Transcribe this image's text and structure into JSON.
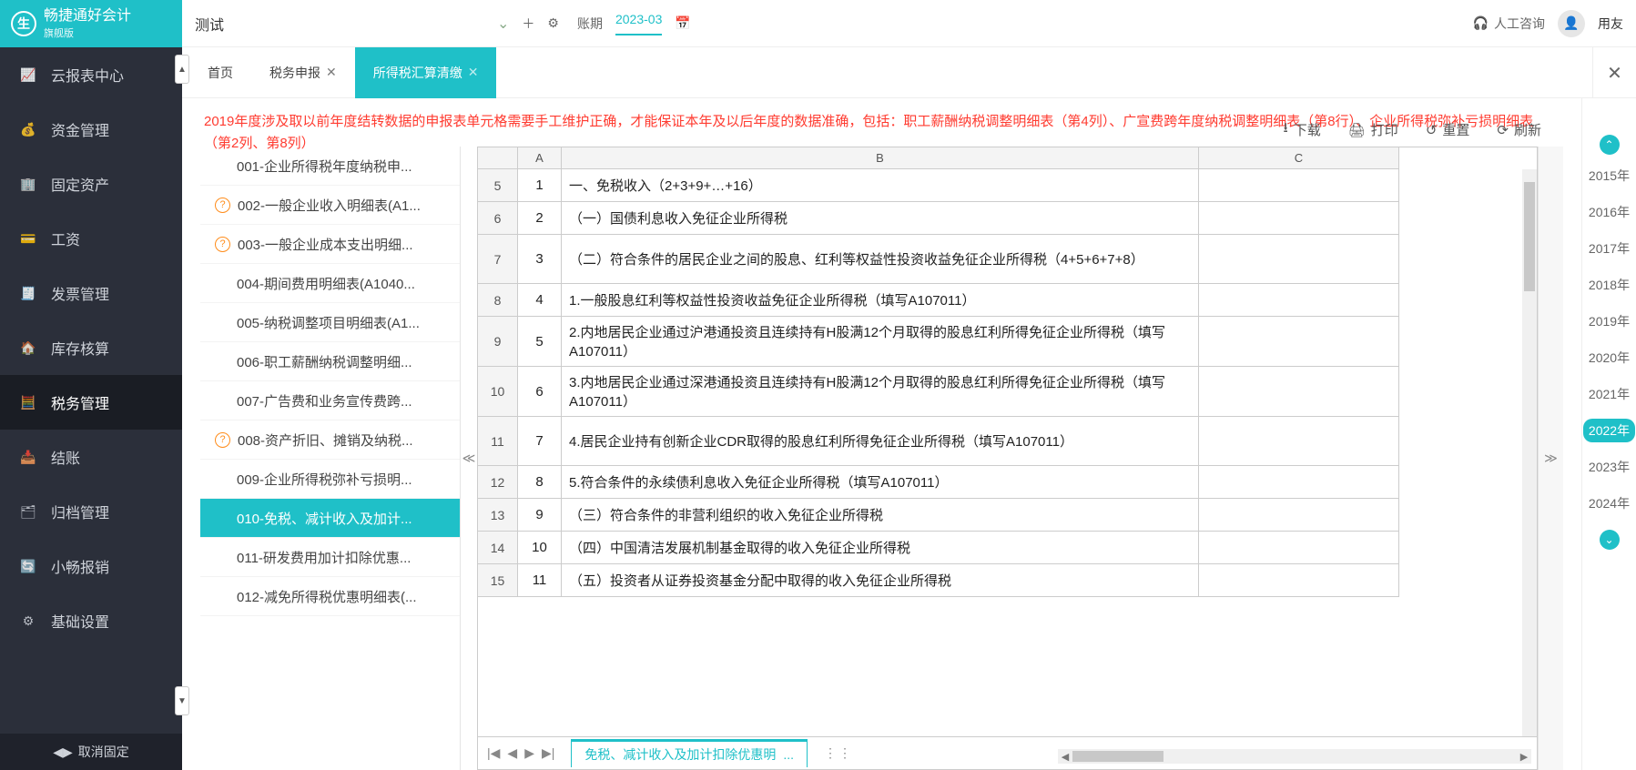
{
  "brand": {
    "name": "畅捷通好会计",
    "edition": "旗舰版",
    "logo_char": "生"
  },
  "topbar": {
    "company": "测试",
    "period_label": "账期",
    "period_value": "2023-03",
    "support": "人工咨询",
    "user": "用友"
  },
  "sidebar": {
    "items": [
      {
        "label": "云报表中心",
        "icon": "report-icon"
      },
      {
        "label": "资金管理",
        "icon": "cash-icon"
      },
      {
        "label": "固定资产",
        "icon": "asset-icon"
      },
      {
        "label": "工资",
        "icon": "salary-icon"
      },
      {
        "label": "发票管理",
        "icon": "invoice-icon"
      },
      {
        "label": "库存核算",
        "icon": "inventory-icon"
      },
      {
        "label": "税务管理",
        "icon": "tax-icon",
        "active": true
      },
      {
        "label": "结账",
        "icon": "close-icon"
      },
      {
        "label": "归档管理",
        "icon": "archive-icon"
      },
      {
        "label": "小畅报销",
        "icon": "reimburse-icon"
      },
      {
        "label": "基础设置",
        "icon": "settings-icon"
      }
    ],
    "collapse_label": "取消固定"
  },
  "tabs": {
    "items": [
      {
        "label": "首页",
        "closable": false
      },
      {
        "label": "税务申报",
        "closable": true
      },
      {
        "label": "所得税汇算清缴",
        "closable": true,
        "active": true
      }
    ]
  },
  "notice": "2019年度涉及取以前年度结转数据的申报表单元格需要手工维护正确，才能保证本年及以后年度的数据准确，包括：职工薪酬纳税调整明细表（第4列）、广宣费跨年度纳税调整明细表（第8行）、企业所得税弥补亏损明细表（第2列、第8列）",
  "toolbar": {
    "download": "下载",
    "print": "打印",
    "reset": "重置",
    "refresh": "刷新"
  },
  "forms": {
    "items": [
      {
        "label": "001-企业所得税年度纳税申..."
      },
      {
        "label": "002-一般企业收入明细表(A1...",
        "warn": true
      },
      {
        "label": "003-一般企业成本支出明细...",
        "warn": true
      },
      {
        "label": "004-期间费用明细表(A1040..."
      },
      {
        "label": "005-纳税调整项目明细表(A1..."
      },
      {
        "label": "006-职工薪酬纳税调整明细..."
      },
      {
        "label": "007-广告费和业务宣传费跨..."
      },
      {
        "label": "008-资产折旧、摊销及纳税...",
        "warn": true
      },
      {
        "label": "009-企业所得税弥补亏损明..."
      },
      {
        "label": "010-免税、减计收入及加计...",
        "selected": true
      },
      {
        "label": "011-研发费用加计扣除优惠..."
      },
      {
        "label": "012-减免所得税优惠明细表(..."
      }
    ]
  },
  "sheet": {
    "headers": {
      "A": "A",
      "B": "B",
      "C": "C"
    },
    "rows": [
      {
        "n": "5",
        "a": "1",
        "b": "一、免税收入（2+3+9+…+16）",
        "h": "norm"
      },
      {
        "n": "6",
        "a": "2",
        "b": "       （一）国债利息收入免征企业所得税",
        "h": "norm"
      },
      {
        "n": "7",
        "a": "3",
        "b": "   （二）符合条件的居民企业之间的股息、红利等权益性投资收益免征企业所得税（4+5+6+7+8）",
        "h": "tall"
      },
      {
        "n": "8",
        "a": "4",
        "b": "               1.一般股息红利等权益性投资收益免征企业所得税（填写A107011）",
        "h": "norm"
      },
      {
        "n": "9",
        "a": "5",
        "b": "2.内地居民企业通过沪港通投资且连续持有H股满12个月取得的股息红利所得免征企业所得税（填写A107011）",
        "h": "tall"
      },
      {
        "n": "10",
        "a": "6",
        "b": "3.内地居民企业通过深港通投资且连续持有H股满12个月取得的股息红利所得免征企业所得税（填写A107011）",
        "h": "tall"
      },
      {
        "n": "11",
        "a": "7",
        "b": "4.居民企业持有创新企业CDR取得的股息红利所得免征企业所得税（填写A107011）",
        "h": "tall"
      },
      {
        "n": "12",
        "a": "8",
        "b": "               5.符合条件的永续债利息收入免征企业所得税（填写A107011）",
        "h": "norm"
      },
      {
        "n": "13",
        "a": "9",
        "b": "       （三）符合条件的非营利组织的收入免征企业所得税",
        "h": "norm"
      },
      {
        "n": "14",
        "a": "10",
        "b": "       （四）中国清洁发展机制基金取得的收入免征企业所得税",
        "h": "norm"
      },
      {
        "n": "15",
        "a": "11",
        "b": "       （五）投资者从证券投资基金分配中取得的收入免征企业所得税",
        "h": "norm"
      }
    ],
    "tab_name": "免税、减计收入及加计扣除优惠明",
    "tab_more": "..."
  },
  "years": {
    "items": [
      "2015年",
      "2016年",
      "2017年",
      "2018年",
      "2019年",
      "2020年",
      "2021年",
      "2022年",
      "2023年",
      "2024年"
    ],
    "active": "2022年"
  },
  "colors": {
    "teal": "#1fc0c8",
    "sidebar_bg": "#2b2f3a",
    "notice": "#ff3b30"
  }
}
